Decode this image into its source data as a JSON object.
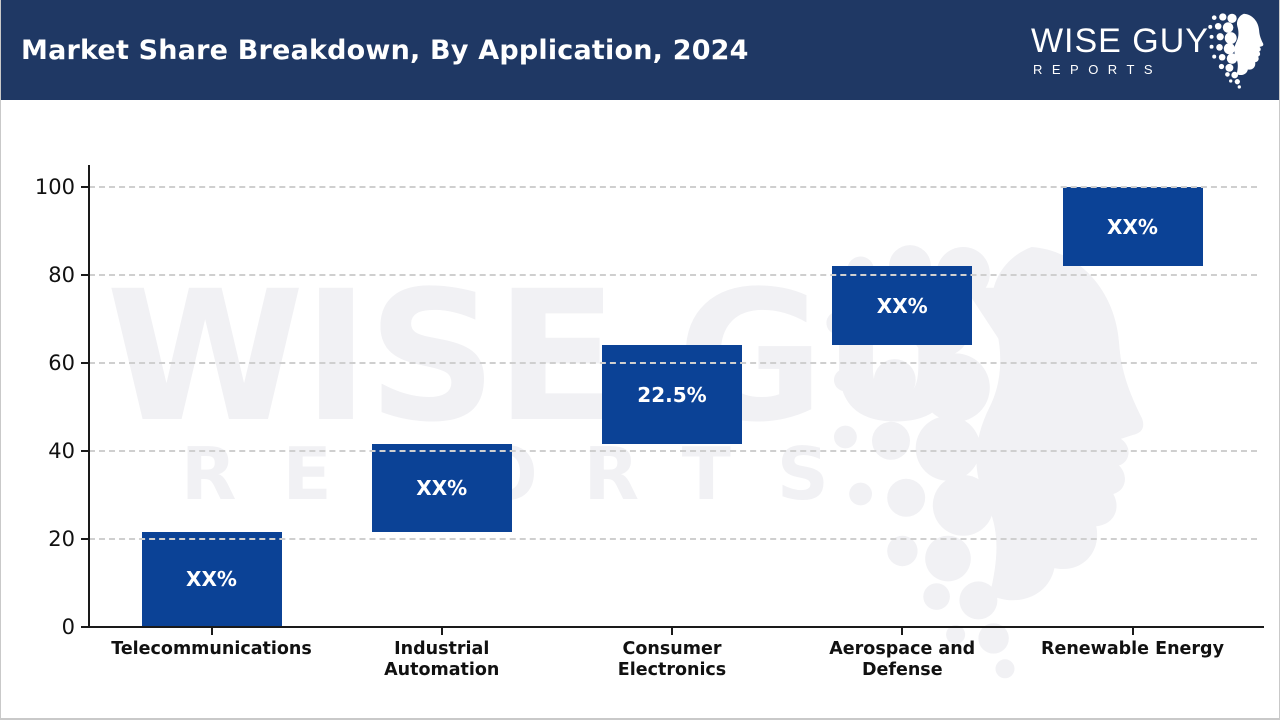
{
  "header": {
    "logo": {
      "primary": "WISE GUY",
      "secondary": "REPORTS"
    }
  },
  "watermark": {
    "primary": "WISE GUY",
    "secondary": "REPORTS"
  },
  "chart_data": {
    "type": "bar",
    "subtype": "waterfall",
    "title": "Market Share Breakdown, By Application, 2024",
    "unit": "%",
    "categories": [
      "Telecommunications",
      "Industrial\nAutomation",
      "Consumer\nElectronics",
      "Aerospace and\nDefense",
      "Renewable Energy"
    ],
    "segments": [
      {
        "category": "Telecommunications",
        "start": 0,
        "end": 21.5,
        "label": "XX%"
      },
      {
        "category": "Industrial\nAutomation",
        "start": 21.5,
        "end": 41.5,
        "label": "XX%"
      },
      {
        "category": "Consumer\nElectronics",
        "start": 41.5,
        "end": 64,
        "label": "22.5%"
      },
      {
        "category": "Aerospace and\nDefense",
        "start": 64,
        "end": 82,
        "label": "XX%"
      },
      {
        "category": "Renewable Energy",
        "start": 82,
        "end": 100,
        "label": "XX%"
      }
    ],
    "yticks": [
      0,
      20,
      40,
      60,
      80,
      100
    ],
    "ylim": [
      0,
      105
    ],
    "xlabel": "",
    "ylabel": "",
    "grid": "horizontal-dashed",
    "legend": "none",
    "colors": {
      "bar": "#0B4296",
      "bar_label": "#FFFFFF",
      "header_bg": "#1F3864",
      "header_text": "#FFFFFF",
      "grid": "#CFCFCF",
      "axis": "#1A1A1A",
      "tick_text": "#111111",
      "watermark": "#F1F1F4"
    }
  }
}
